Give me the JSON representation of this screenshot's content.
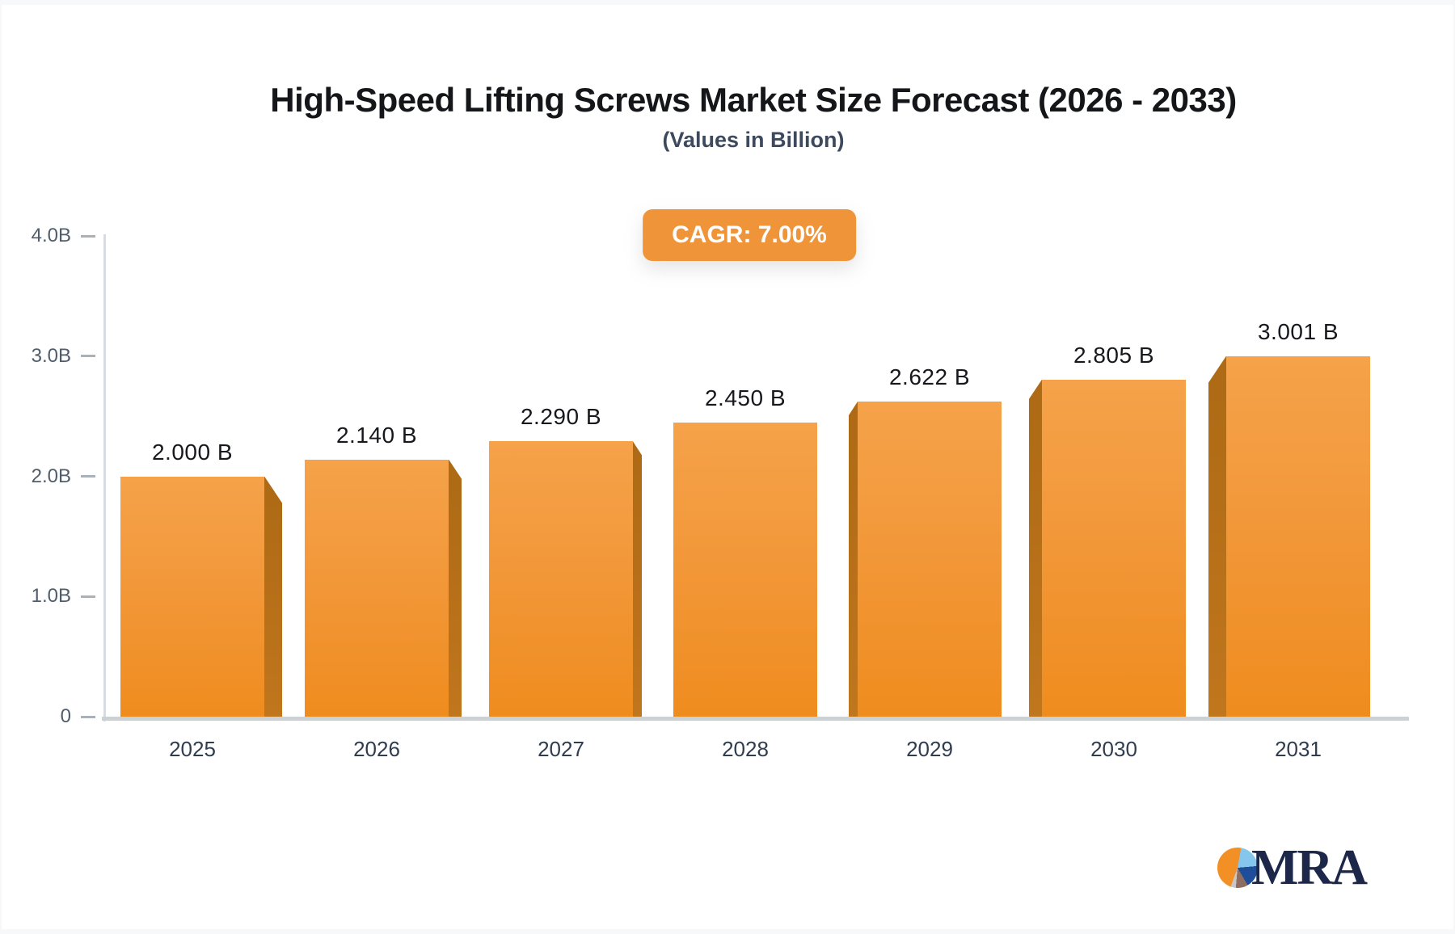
{
  "header": {
    "title": "High-Speed Lifting Screws Market Size Forecast (2026 - 2033)",
    "subtitle": "(Values in Billion)",
    "cagr_label": "CAGR: 7.00%"
  },
  "branding": {
    "logo_text": "MRA"
  },
  "chart_data": {
    "type": "bar",
    "title": "High-Speed Lifting Screws Market Size Forecast (2026 - 2033)",
    "subtitle": "(Values in Billion)",
    "cagr_percent": "7.00%",
    "categories": [
      "2025",
      "2026",
      "2027",
      "2028",
      "2029",
      "2030",
      "2031"
    ],
    "values": [
      2.0,
      2.14,
      2.29,
      2.45,
      2.622,
      2.805,
      3.001
    ],
    "bar_labels": [
      "2.000 B",
      "2.140 B",
      "2.290 B",
      "2.450 B",
      "2.622 B",
      "2.805 B",
      "3.001 B"
    ],
    "unit": "Billion",
    "ylim": [
      0,
      4
    ],
    "yticks": [
      {
        "value": 0,
        "label": "0"
      },
      {
        "value": 1,
        "label": "1.0B"
      },
      {
        "value": 2,
        "label": "2.0B"
      },
      {
        "value": 3,
        "label": "3.0B"
      },
      {
        "value": 4,
        "label": "4.0B"
      }
    ],
    "grid": false,
    "legend": false,
    "colors": {
      "bar_face_top": "#f5a24a",
      "bar_face_bottom": "#ef8c1e",
      "bar_side": "#b06b16",
      "accent_badge": "#f0943a",
      "axis_line": "#d8dbdf",
      "baseline": "#ccd1d6",
      "tick_label": "#515d6b",
      "category_label": "#303c4f",
      "value_label": "#16181d",
      "logo_navy": "#1d2749",
      "logo_orange": "#f29026"
    }
  }
}
